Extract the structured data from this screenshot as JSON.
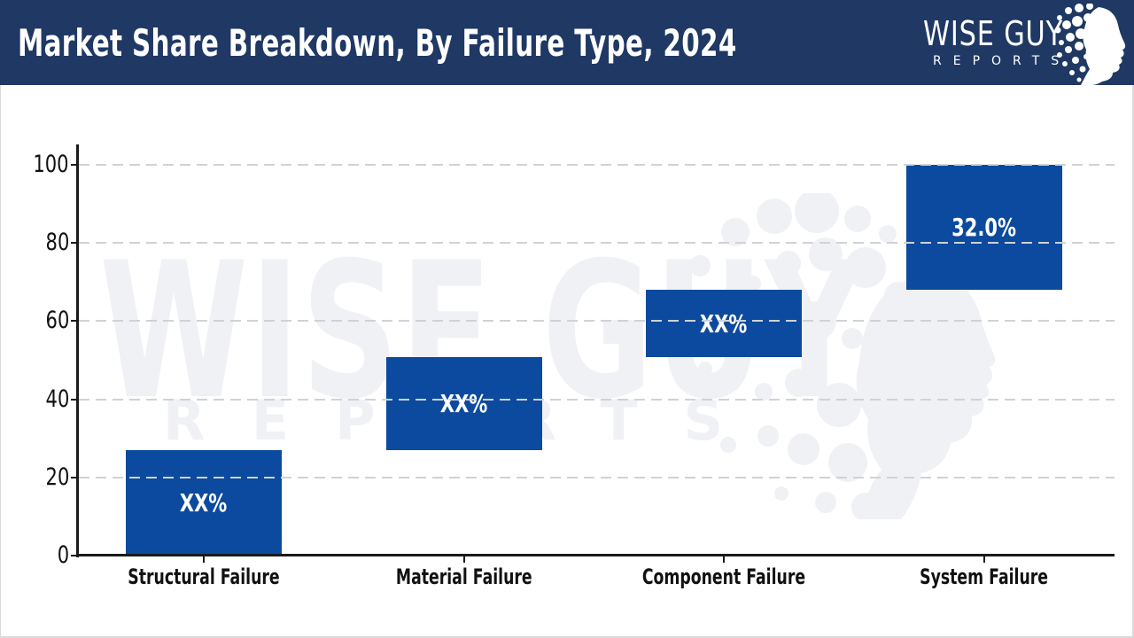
{
  "header": {
    "title": "Market Share Breakdown, By Failure Type, 2024",
    "logo": {
      "wordmark": "WISE GUY",
      "tagline": "REPORTS"
    }
  },
  "watermark": {
    "wordmark": "WISE GUY",
    "tagline": "REPORTS"
  },
  "colors": {
    "header_bg": "#1f3864",
    "header_text": "#ffffff",
    "bar": "#0b4a9e",
    "bar_label": "#ffffff",
    "grid": "#cfd2d6",
    "axis": "#1a1a1a",
    "tick_label": "#111111",
    "watermark": "#f0f1f4",
    "page_bg": "#ffffff",
    "page_border": "#d9d9d9"
  },
  "chart_data": {
    "type": "bar",
    "subtype": "floating-waterfall",
    "title": "Market Share Breakdown, By Failure Type, 2024",
    "categories": [
      "Structural Failure",
      "Material Failure",
      "Component Failure",
      "System Failure"
    ],
    "series": [
      {
        "name": "Market share (%)",
        "segments": [
          {
            "start": 0,
            "end": 27,
            "size": 27,
            "label": "XX%"
          },
          {
            "start": 27,
            "end": 50.8,
            "size": 23.8,
            "label": "XX%"
          },
          {
            "start": 50.8,
            "end": 68,
            "size": 17.2,
            "label": "XX%"
          },
          {
            "start": 68,
            "end": 100,
            "size": 32,
            "label": "32.0%"
          }
        ]
      }
    ],
    "xlabel": "",
    "ylabel": "",
    "ylim": [
      0,
      100
    ],
    "yticks": [
      0,
      20,
      40,
      60,
      80,
      100
    ],
    "grid": "horizontal dashed, drawn above bars",
    "legend_position": "none"
  }
}
